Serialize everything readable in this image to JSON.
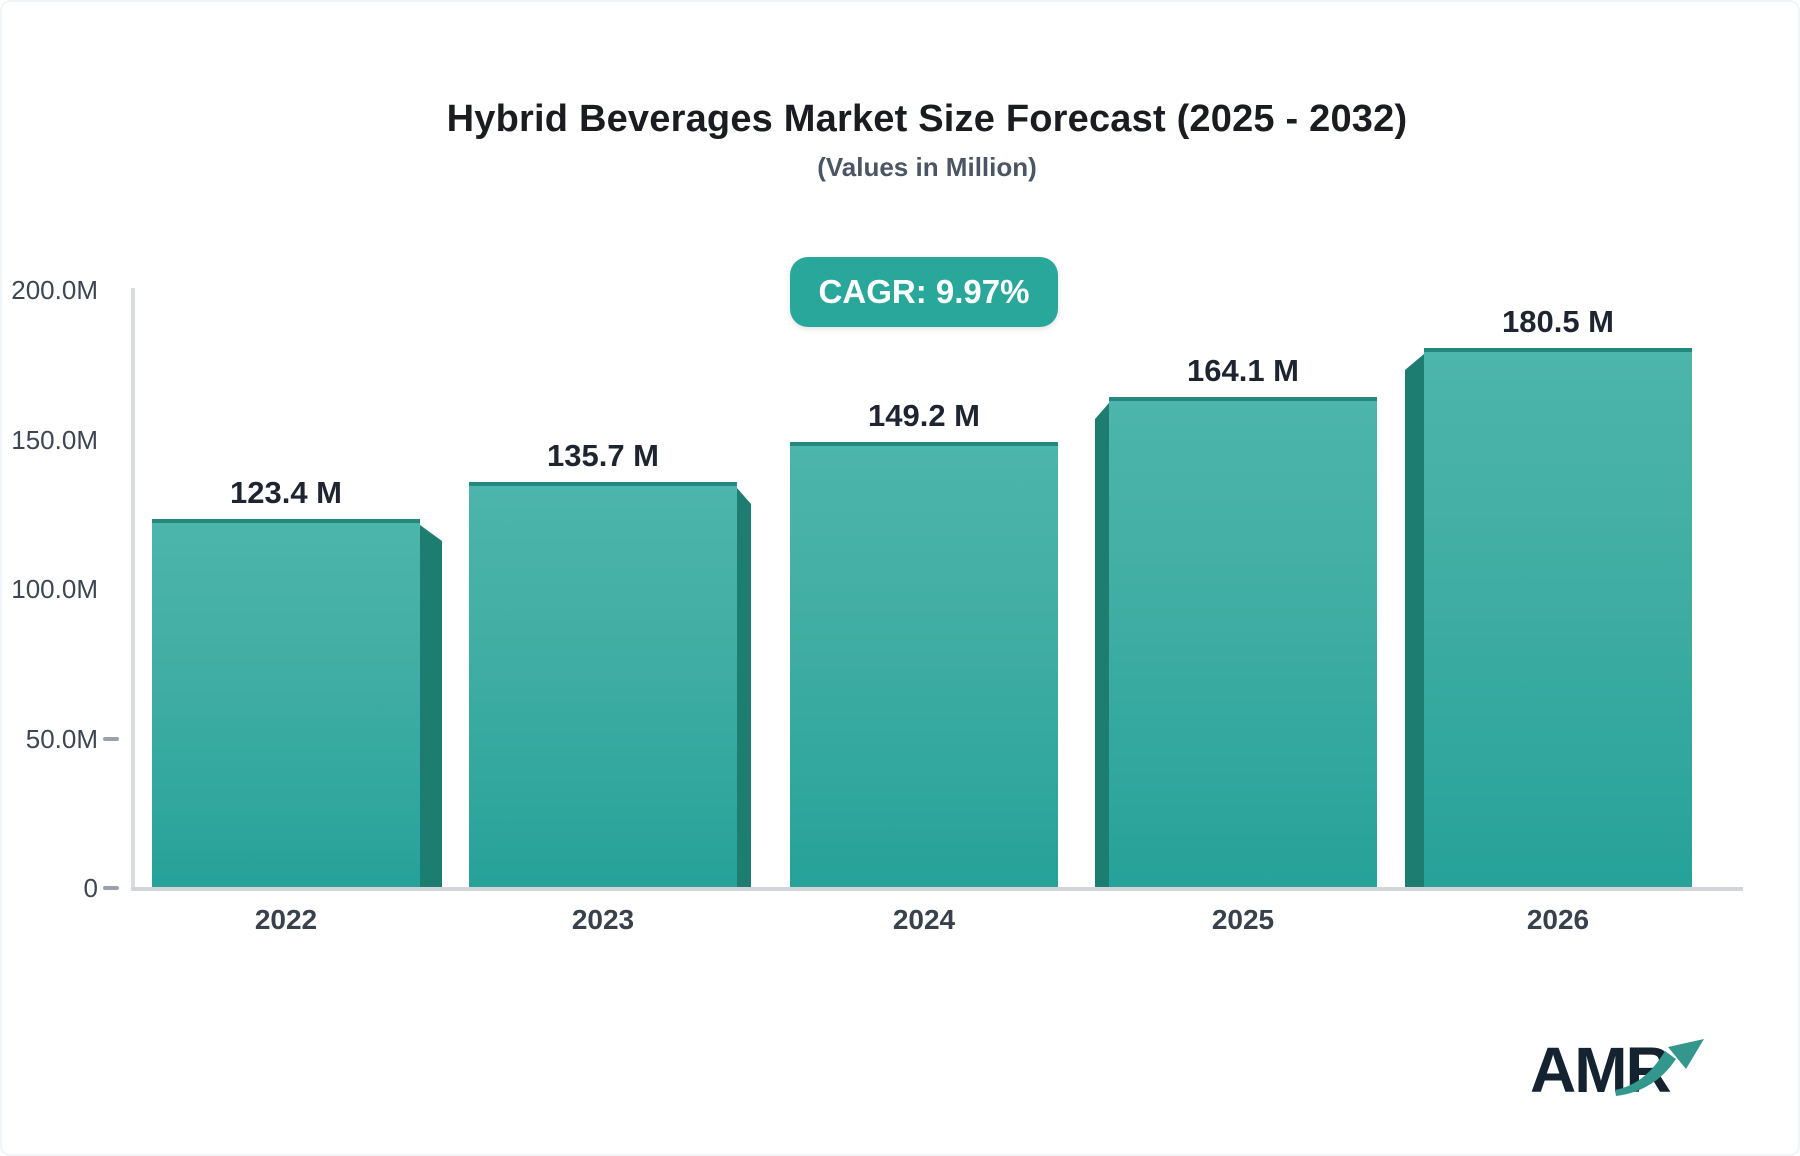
{
  "title": "Hybrid Beverages Market Size Forecast (2025 - 2032)",
  "subtitle": "(Values in Million)",
  "badge": {
    "label": "CAGR: 9.97%",
    "bg": "#2aa79b",
    "text_color": "#ffffff"
  },
  "chart_data": {
    "type": "bar",
    "title": "Hybrid Beverages Market Size Forecast (2025 - 2032)",
    "subtitle": "(Values in Million)",
    "categories": [
      "2022",
      "2023",
      "2024",
      "2025",
      "2026"
    ],
    "values": [
      123.4,
      135.7,
      149.2,
      164.1,
      180.5
    ],
    "bar_labels": [
      "123.4 M",
      "135.7 M",
      "149.2 M",
      "164.1 M",
      "180.5 M"
    ],
    "annotation": "CAGR: 9.97%",
    "xlabel": "",
    "ylabel": "",
    "ylim": [
      0,
      200
    ],
    "y_ticks": [
      "200.0M",
      "150.0M",
      "100.0M",
      "50.0M",
      "0"
    ],
    "y_tick_values": [
      200,
      150,
      100,
      50,
      0
    ],
    "y_dash_tick_values": [
      50,
      0
    ],
    "grid": "off",
    "legend": "none",
    "colors": {
      "bar_gradient_top": "#4db5ab",
      "bar_gradient_mid": "#3fada3",
      "bar_gradient_bottom": "#26a299",
      "bar_cap": "#23897c",
      "bar_side": "#1e7d71",
      "axis_line": "#d2d5d9",
      "tick_label": "#3d4653",
      "value_label": "#1e2530"
    }
  },
  "logo": {
    "text": "AMR",
    "color": "#152230",
    "arrow_icon": "trend-arrow-icon",
    "arrow_color": "#34978d"
  }
}
